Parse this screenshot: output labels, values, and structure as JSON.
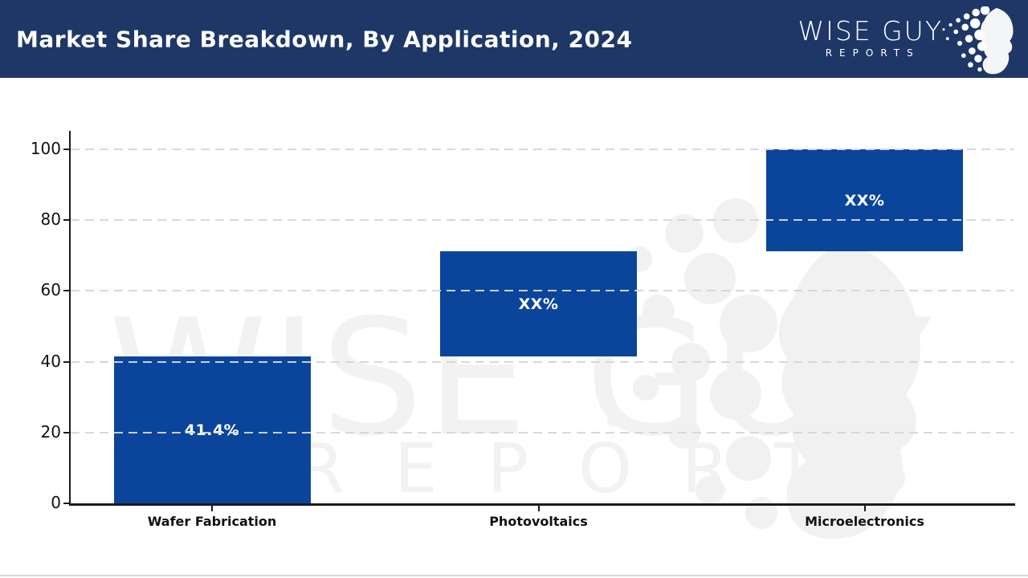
{
  "header": {
    "title": "Market Share Breakdown, By Application, 2024",
    "logo": {
      "line1": "WISE GUY",
      "line2": "REPORTS"
    }
  },
  "watermark": {
    "line1": "WISE GUY",
    "line2": "REPORTS"
  },
  "colors": {
    "header_bg": "#1e3766",
    "bar": "#0b459b",
    "grid": "#d6d6d6",
    "axis": "#1a1a1a",
    "watermark": "#f2f2f2",
    "value_label": "#ffffff"
  },
  "chart_data": {
    "type": "bar",
    "subtype": "floating-stacked-waterfall",
    "title": "Market Share Breakdown, By Application, 2024",
    "categories": [
      "Wafer Fabrication",
      "Photovoltaics",
      "Microelectronics"
    ],
    "bars": [
      {
        "category": "Wafer Fabrication",
        "start": 0,
        "end": 41.4,
        "label": "41.4%"
      },
      {
        "category": "Photovoltaics",
        "start": 41.4,
        "end": 71.2,
        "label": "XX%"
      },
      {
        "category": "Microelectronics",
        "start": 71.2,
        "end": 100,
        "label": "XX%"
      }
    ],
    "yticks": [
      0,
      20,
      40,
      60,
      80,
      100
    ],
    "ylim": [
      0,
      105
    ],
    "xlabel": "",
    "ylabel": "",
    "grid": "horizontal-dashed",
    "legend": "none",
    "bar_color": "#0b459b"
  }
}
